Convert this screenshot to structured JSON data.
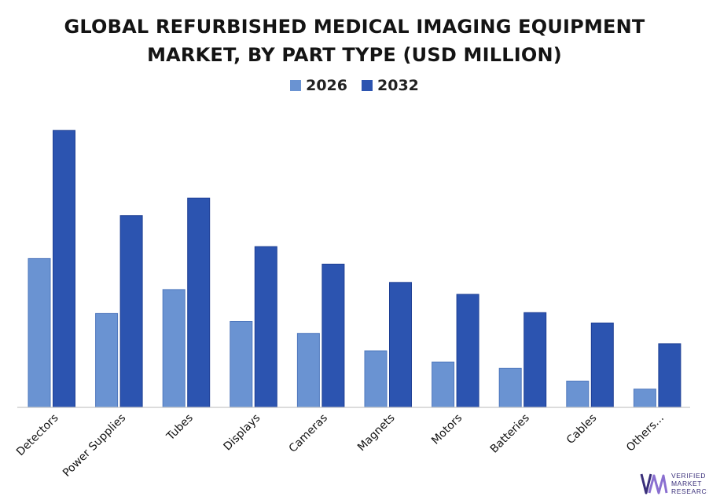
{
  "chart_data": {
    "type": "bar",
    "title": "GLOBAL REFURBISHED MEDICAL IMAGING EQUIPMENT MARKET, BY PART TYPE (USD MILLION)",
    "categories": [
      "Detectors",
      "Power Supplies",
      "Tubes",
      "Displays",
      "Cameras",
      "Magnets",
      "Motors",
      "Batteries",
      "Cables",
      "Others..."
    ],
    "series": [
      {
        "name": "2026",
        "color": "#6a93d2",
        "values": [
          187,
          118,
          148,
          108,
          93,
          71,
          57,
          49,
          33,
          23
        ]
      },
      {
        "name": "2032",
        "color": "#2c54b0",
        "values": [
          348,
          241,
          263,
          202,
          180,
          157,
          142,
          119,
          106,
          80
        ]
      }
    ],
    "ylim": [
      0,
      360
    ],
    "grid": false,
    "legend_position": "top-center",
    "xlabel": "",
    "ylabel": ""
  },
  "brand": {
    "line1": "VERIFIED",
    "line2": "MARKET",
    "line3": "RESEARCH",
    "logo_color": "#3a2f7a",
    "accent_color": "#8a6fd0"
  }
}
